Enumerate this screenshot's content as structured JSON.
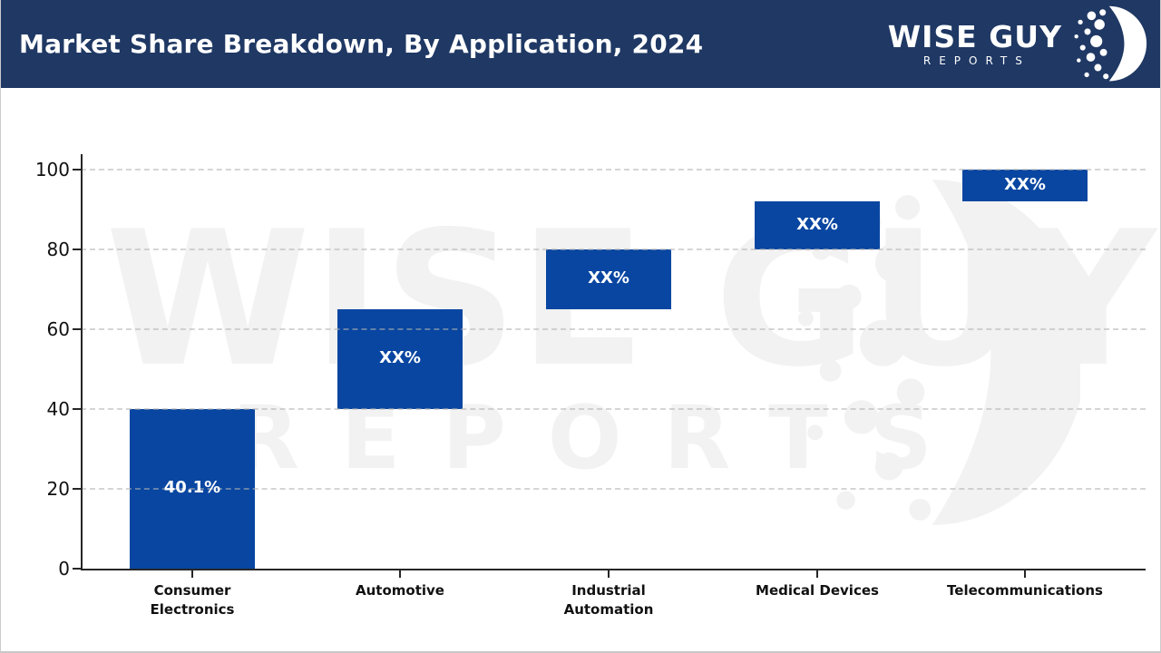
{
  "header": {
    "title": "Market Share Breakdown, By Application, 2024",
    "logo": {
      "name": "WISE GUY",
      "sub": "REPORTS"
    }
  },
  "watermark": {
    "line1": "WISE GUY",
    "line2": "REPORTS"
  },
  "chart_data": {
    "type": "bar",
    "subtype": "waterfall",
    "title": "Market Share Breakdown, By Application, 2024",
    "categories": [
      "Consumer Electronics",
      "Automotive",
      "Industrial Automation",
      "Medical Devices",
      "Telecommunications"
    ],
    "category_lines": [
      [
        "Consumer",
        "Electronics"
      ],
      [
        "Automotive"
      ],
      [
        "Industrial",
        "Automation"
      ],
      [
        "Medical Devices"
      ],
      [
        "Telecommunications"
      ]
    ],
    "segments": [
      {
        "category": "Consumer Electronics",
        "start": 0,
        "end": 40.1,
        "label": "40.1%"
      },
      {
        "category": "Automotive",
        "start": 40.1,
        "end": 65,
        "label": "XX%"
      },
      {
        "category": "Industrial Automation",
        "start": 65,
        "end": 80,
        "label": "XX%"
      },
      {
        "category": "Medical Devices",
        "start": 80,
        "end": 92,
        "label": "XX%"
      },
      {
        "category": "Telecommunications",
        "start": 92,
        "end": 100,
        "label": "XX%"
      }
    ],
    "ylim": [
      0,
      100
    ],
    "yticks": [
      0,
      20,
      40,
      60,
      80,
      100
    ],
    "xlabel": "",
    "ylabel": "",
    "grid": "horizontal-dashed",
    "legend": "none",
    "colors": {
      "bar": "#0846a1",
      "bar_label": "#ffffff",
      "header_bg": "#1f3864",
      "axis": "#262626",
      "grid": "#d9d9d9",
      "text": "#111111"
    }
  }
}
